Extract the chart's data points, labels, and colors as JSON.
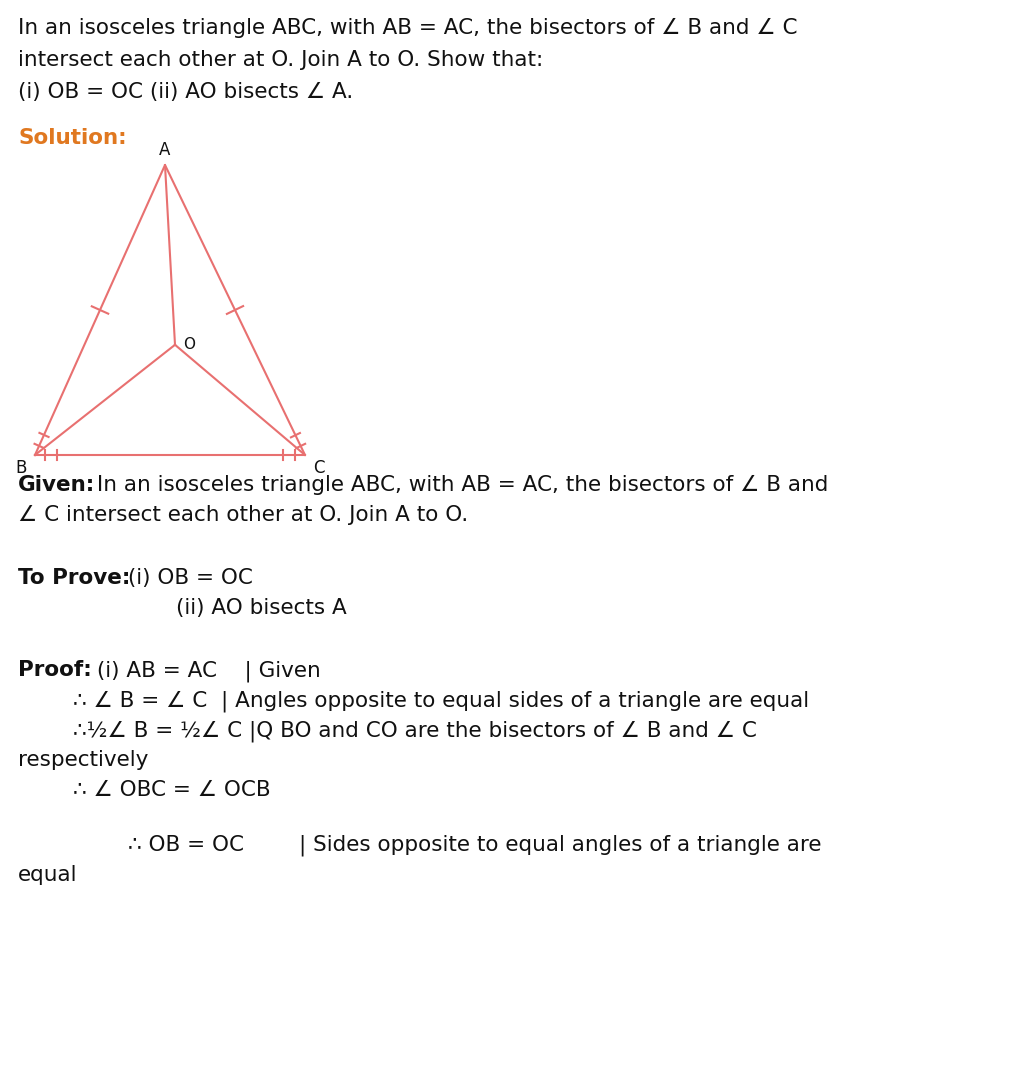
{
  "bg_color": "#ffffff",
  "title_line1": "In an isosceles triangle ABC, with AB = AC, the bisectors of ∠ B and ∠ C",
  "title_line2": "intersect each other at O. Join A to O. Show that:",
  "title_line3": "(i) OB = OC (ii) AO bisects ∠ A.",
  "solution_label": "Solution:",
  "solution_color": "#e07820",
  "triangle_color": "#e87070",
  "font_size": 15.5,
  "font_size_small": 12
}
